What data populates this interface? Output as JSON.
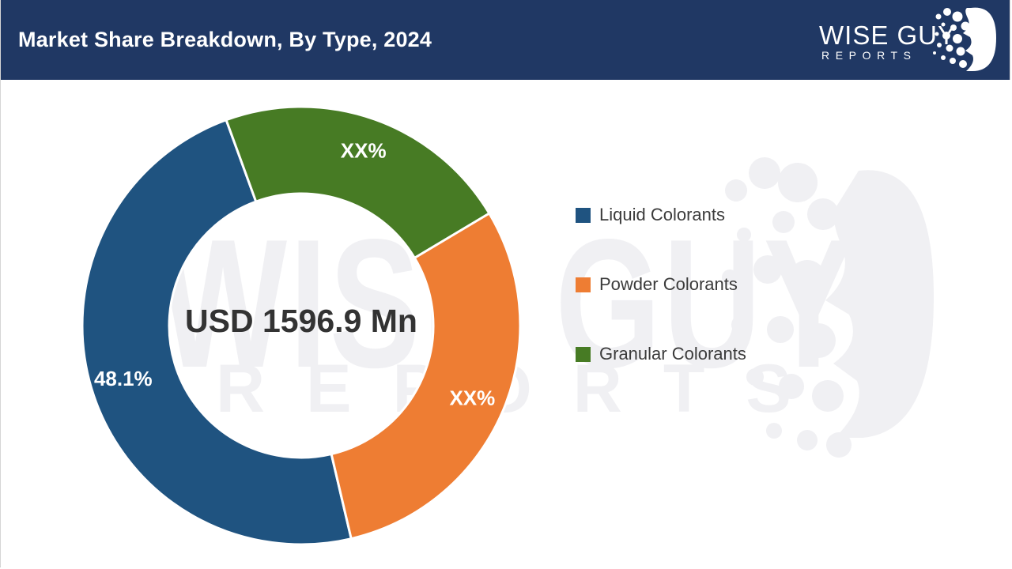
{
  "header": {
    "title": "Market Share Breakdown, By Type, 2024",
    "bg_color": "#203864",
    "logo_line1": "WISE GUY",
    "logo_line2": "REPORTS",
    "logo_icon": "head-profile-dots-icon"
  },
  "watermark": {
    "line1": "WISE GUY",
    "line2": "REPORTS",
    "face_icon": "head-profile-dots-icon",
    "color": "#F0F0F3"
  },
  "chart_data": {
    "type": "pie",
    "subtype": "donut",
    "title": "Market Share Breakdown, By Type, 2024",
    "center_label": "USD 1596.9 Mn",
    "legend_position": "right",
    "start_angle_deg": 166.8,
    "draw_order": [
      0,
      2,
      1
    ],
    "segments": [
      {
        "label": "Liquid Colorants",
        "display_label": "48.1%",
        "value_pct": 48.1,
        "color": "#1F5380",
        "value_shown": true
      },
      {
        "label": "Powder Colorants",
        "display_label": "XX%",
        "value_pct": 29.9,
        "color": "#EE7D33",
        "value_shown": false
      },
      {
        "label": "Granular Colorants",
        "display_label": "XX%",
        "value_pct": 22.0,
        "color": "#477B24",
        "value_shown": false
      }
    ]
  }
}
